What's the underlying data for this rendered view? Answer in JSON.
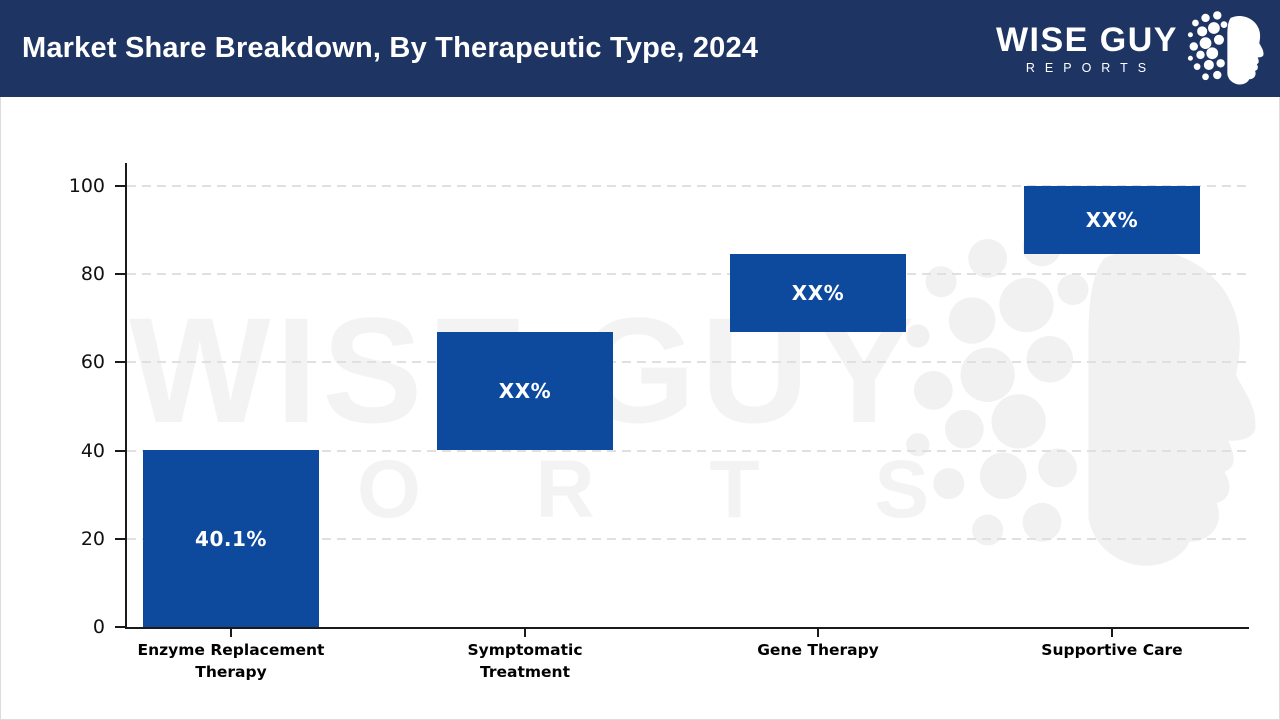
{
  "header": {
    "title": "Market Share Breakdown, By Therapeutic Type, 2024",
    "brand": {
      "wordmark": "WISE GUY",
      "subtext": "REPORTS"
    }
  },
  "watermark": {
    "line1": "WISE GUY",
    "line2": "P O R T S"
  },
  "chart_data": {
    "type": "bar",
    "variant": "waterfall",
    "title": "Market Share Breakdown, By Therapeutic Type, 2024",
    "categories": [
      "Enzyme Replacement\nTherapy",
      "Symptomatic\nTreatment",
      "Gene Therapy",
      "Supportive Care"
    ],
    "bars": [
      {
        "category": "Enzyme Replacement Therapy",
        "start": 0,
        "end": 40.1,
        "label": "40.1%"
      },
      {
        "category": "Symptomatic Treatment",
        "start": 40.1,
        "end": 66.8,
        "label": "XX%"
      },
      {
        "category": "Gene Therapy",
        "start": 66.8,
        "end": 84.5,
        "label": "XX%"
      },
      {
        "category": "Supportive Care",
        "start": 84.5,
        "end": 100,
        "label": "XX%"
      }
    ],
    "xlabel": "",
    "ylabel": "",
    "ylim": [
      0,
      105
    ],
    "yticks": [
      0,
      20,
      40,
      60,
      80,
      100
    ],
    "grid": "horizontal-dashed",
    "legend": "none",
    "bar_color": "#0d4a9d",
    "value_label_color": "#ffffff"
  },
  "colors": {
    "header_bg": "#1e3564",
    "title_text": "#ffffff",
    "bar": "#0d4a9d",
    "grid": "#e0e0e0",
    "axis": "#1a1a1a",
    "bar_label": "#ffffff",
    "watermark": "#f3f3f3",
    "frame_border": "#dcdcdc"
  }
}
